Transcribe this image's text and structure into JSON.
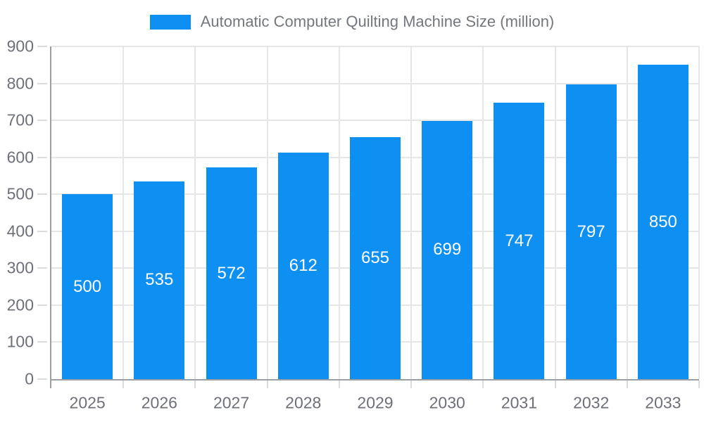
{
  "chart_data": {
    "type": "bar",
    "title": "Automatic Computer Quilting Machine Size (million)",
    "categories": [
      "2025",
      "2026",
      "2027",
      "2028",
      "2029",
      "2030",
      "2031",
      "2032",
      "2033"
    ],
    "values": [
      500,
      535,
      572,
      612,
      655,
      699,
      747,
      797,
      850
    ],
    "xlabel": "",
    "ylabel": "",
    "ylim": [
      0,
      900
    ],
    "yticks": [
      0,
      100,
      200,
      300,
      400,
      500,
      600,
      700,
      800,
      900
    ],
    "grid": true,
    "legend_position": "top-center",
    "colors": {
      "bar": "#0D90F2",
      "value_label": "#FFFFFF",
      "axis_label": "#6E7079",
      "legend_text": "#74787E",
      "grid_line": "#E6E6E6",
      "axis_line": "#9B9EA3",
      "tick": "#D9DBDE",
      "background": "#FFFFFF"
    }
  }
}
